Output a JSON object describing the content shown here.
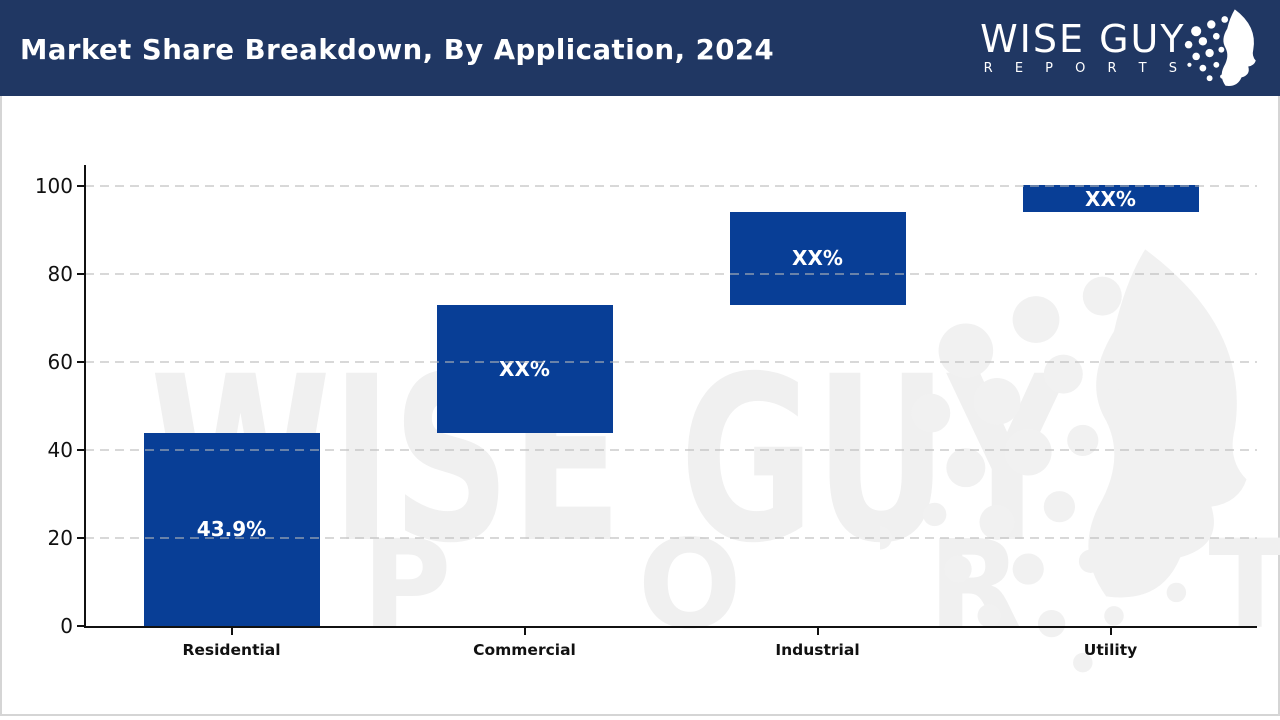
{
  "header": {
    "title": "Market Share Breakdown, By Application, 2024",
    "bg_color": "#203763",
    "logo": {
      "wordmark": "WISE GUY",
      "subtext": "R E P O R T S"
    }
  },
  "watermark": {
    "line1": "WISE GUY",
    "line2": "P O R T S"
  },
  "chart_data": {
    "type": "bar",
    "subtype": "waterfall",
    "title": "Market Share Breakdown, By Application, 2024",
    "categories": [
      "Residential",
      "Commercial",
      "Industrial",
      "Utility"
    ],
    "segments": [
      {
        "category": "Residential",
        "start": 0,
        "end": 43.9,
        "value_label": "43.9%"
      },
      {
        "category": "Commercial",
        "start": 43.9,
        "end": 73.0,
        "value_label": "XX%"
      },
      {
        "category": "Industrial",
        "start": 73.0,
        "end": 94.1,
        "value_label": "XX%"
      },
      {
        "category": "Utility",
        "start": 94.1,
        "end": 100.2,
        "value_label": "XX%"
      }
    ],
    "y_ticks": [
      0,
      20,
      40,
      60,
      80,
      100
    ],
    "ylim": [
      0,
      104.8
    ],
    "grid": true,
    "grid_style": "dashed",
    "bar_color": "#083E96",
    "value_label_color": "#ffffff",
    "axis_color": "#111111",
    "legend": "none"
  }
}
